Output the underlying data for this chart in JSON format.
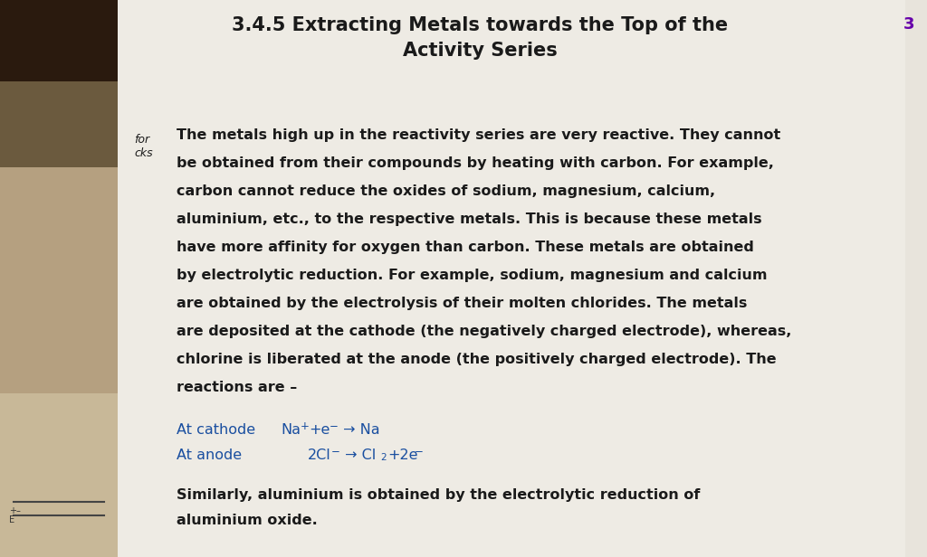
{
  "bg_color": "#d8d0c4",
  "page_bg": "#e8e4dc",
  "title_line1": "3.4.5 Extracting Metals towards the Top of the",
  "title_line2": "Activity Series",
  "title_fontsize": 15,
  "title_color": "#1a1a1a",
  "body_color": "#1a1a1a",
  "body_fontsize": 11.5,
  "blue_color": "#1a4fa0",
  "page_number": "3",
  "left_margin_for": "for",
  "left_margin_cks": "cks",
  "paragraph_lines": [
    "The metals high up in the reactivity series are very reactive. They cannot",
    "be obtained from their compounds by heating with carbon. For example,",
    "carbon cannot reduce the oxides of sodium, magnesium, calcium,",
    "aluminium, etc., to the respective metals. This is because these metals",
    "have more affinity for oxygen than carbon. These metals are obtained",
    "by electrolytic reduction. For example, sodium, magnesium and calcium",
    "are obtained by the electrolysis of their molten chlorides. The metals",
    "are deposited at the cathode (the negatively charged electrode), whereas,",
    "chlorine is liberated at the anode (the positively charged electrode). The",
    "reactions are –"
  ],
  "footer_lines": [
    "Similarly, aluminium is obtained by the electrolytic reduction of",
    "aluminium oxide."
  ],
  "img_dark_color": "#2a1a0e",
  "img_mid_color": "#6b5a3e",
  "img_light_color": "#8b7a5a",
  "sidebar_color": "#b5a080",
  "bottom_sidebar_color": "#c8b898"
}
